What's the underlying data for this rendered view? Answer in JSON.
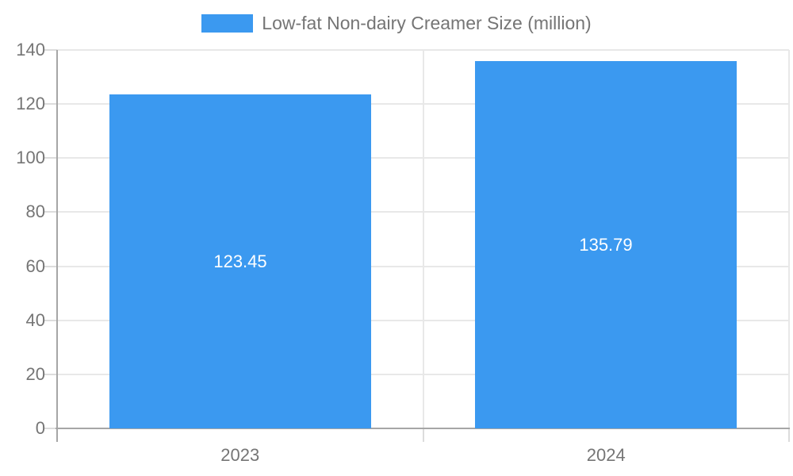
{
  "chart_data": {
    "type": "bar",
    "categories": [
      "2023",
      "2024"
    ],
    "series": [
      {
        "name": "Low-fat Non-dairy Creamer Size (million)",
        "values": [
          123.45,
          135.79
        ]
      }
    ],
    "data_labels": [
      "123.45",
      "135.79"
    ],
    "title": "",
    "xlabel": "",
    "ylabel": "",
    "ylim": [
      0,
      140
    ],
    "ytick_step": 20,
    "ytick_labels": [
      "0",
      "20",
      "40",
      "60",
      "80",
      "100",
      "120",
      "140"
    ],
    "grid": true,
    "legend_position": "top",
    "colors": {
      "bar": "#3B99F0",
      "grid_line": "#e8e8e8",
      "tick_line": "#dcdcdc",
      "axis_line": "#a6a6a6",
      "axis_text": "#757575",
      "value_label_text": "#ffffff",
      "background": "#ffffff"
    }
  }
}
